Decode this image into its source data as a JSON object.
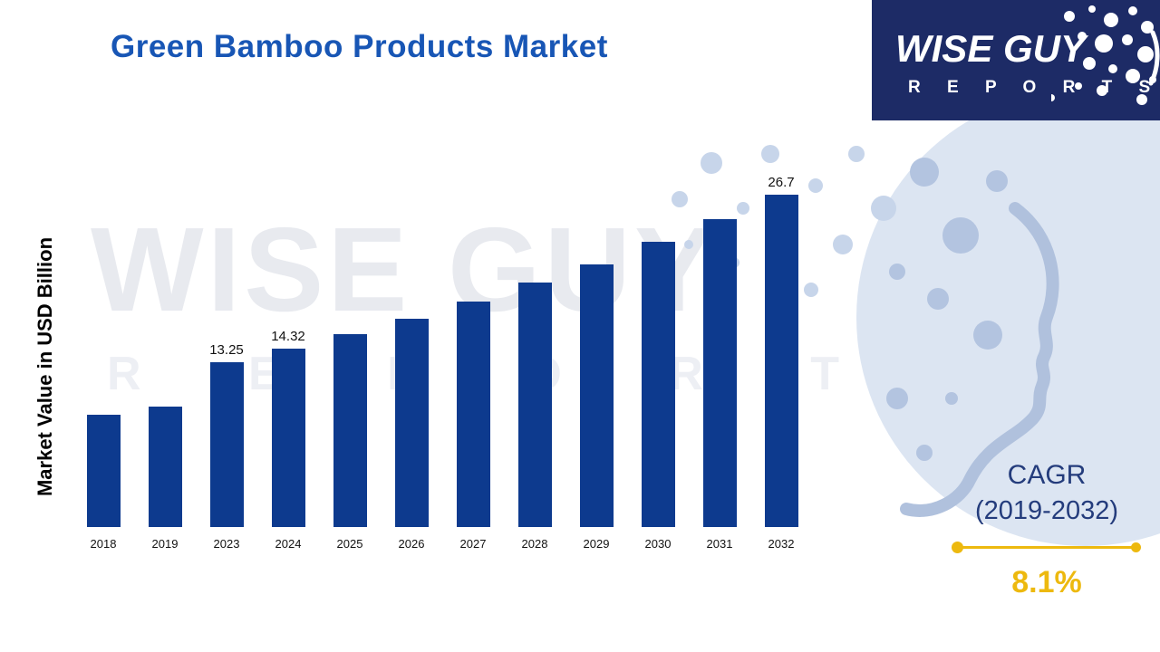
{
  "title": "Green Bamboo Products Market",
  "logo": {
    "line1": "WISE GUY",
    "line2": "R E P O R T S"
  },
  "watermark": {
    "line1": "WISE GUY",
    "line2": "R E P O R T S"
  },
  "y_axis_label": "Market Value in USD Billion",
  "cagr": {
    "heading": "CAGR",
    "range": "(2019-2032)",
    "value": "8.1%"
  },
  "colors": {
    "title_blue": "#1856b5",
    "bar_navy": "#0d3a8e",
    "panel_navy": "#1d2b66",
    "accent_gold": "#edb90f",
    "cagr_navy": "#243c7c"
  },
  "chart_data": {
    "type": "bar",
    "title": "Green Bamboo Products Market",
    "xlabel": "",
    "ylabel": "Market Value in USD Billion",
    "unit": "USD Billion",
    "categories": [
      "2018",
      "2019",
      "2023",
      "2024",
      "2025",
      "2026",
      "2027",
      "2028",
      "2029",
      "2030",
      "2031",
      "2032"
    ],
    "values": [
      9.0,
      9.7,
      13.25,
      14.32,
      15.5,
      16.7,
      18.1,
      19.6,
      21.1,
      22.9,
      24.7,
      26.7
    ],
    "data_labels": [
      "",
      "",
      "13.25",
      "14.32",
      "",
      "",
      "",
      "",
      "",
      "",
      "",
      "26.7"
    ],
    "ylim": [
      0,
      28
    ],
    "grid": false,
    "legend": false,
    "bar_color": "#0d3a8e"
  }
}
